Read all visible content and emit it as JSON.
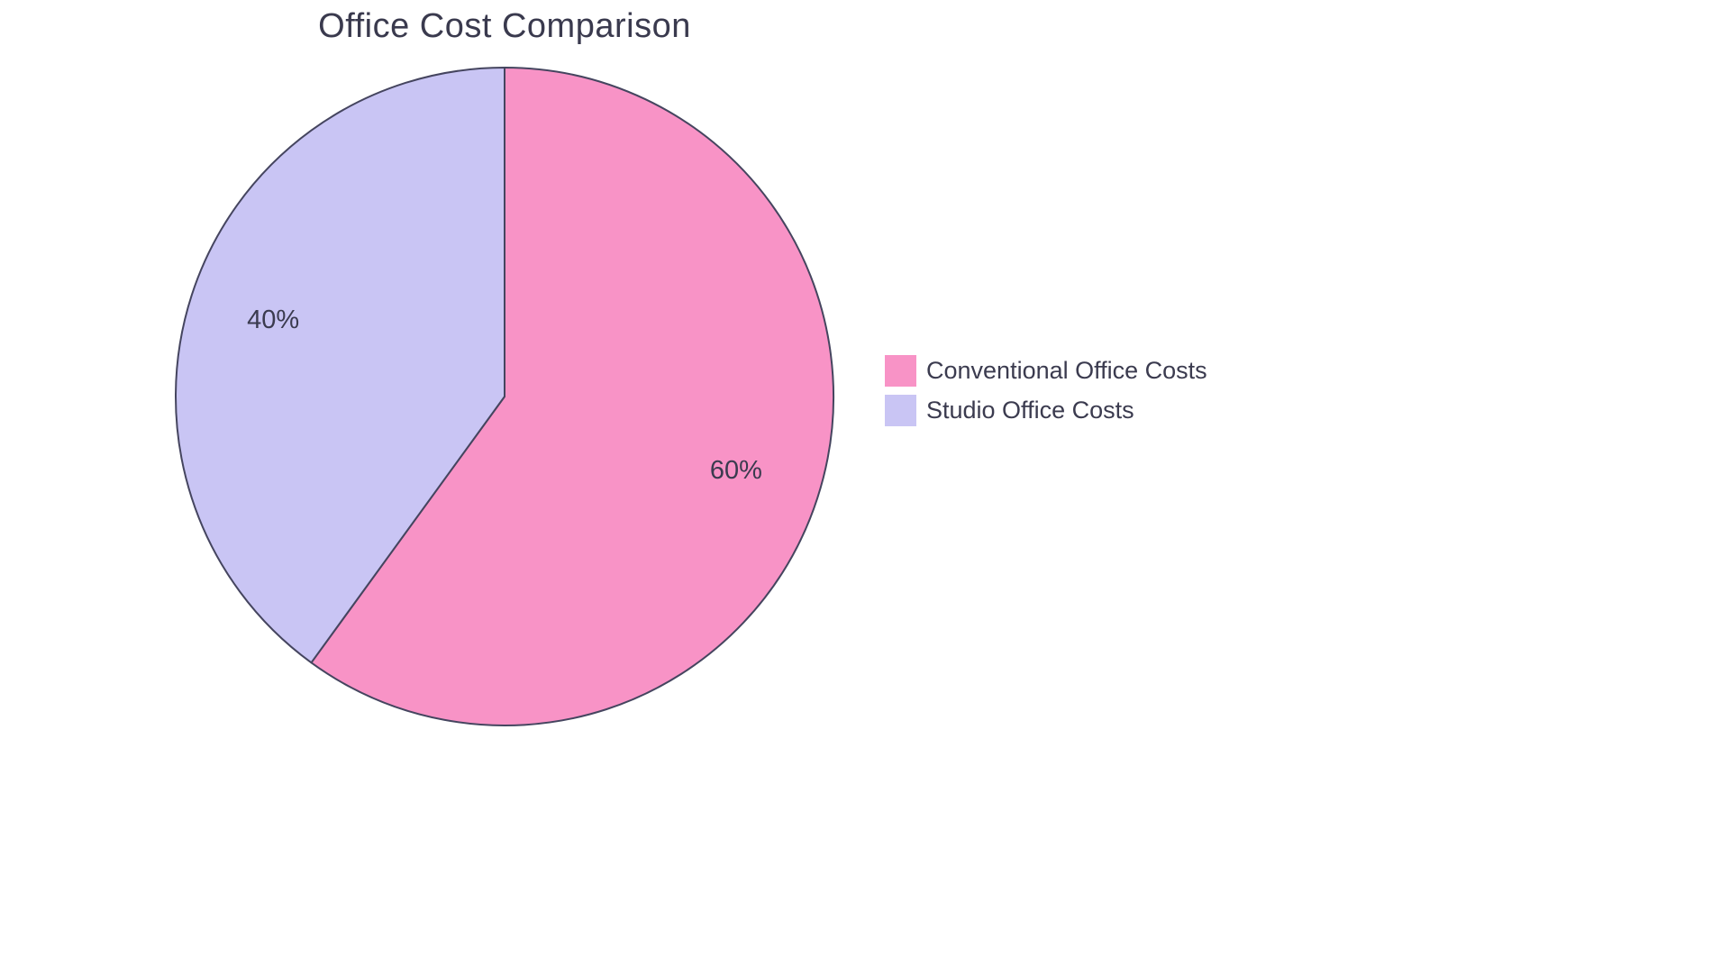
{
  "page": {
    "background": "#FFFFFF"
  },
  "chart_data": {
    "type": "pie",
    "title": "Office Cost Comparison",
    "series": [
      {
        "label": "Conventional Office Costs",
        "value": 60,
        "display_label": "60%",
        "color": "#F893C6"
      },
      {
        "label": "Studio Office Costs",
        "value": 40,
        "display_label": "40%",
        "color": "#C9C5F4"
      }
    ],
    "start_angle_deg": 0,
    "direction": "clockwise",
    "legend_position": "right",
    "stroke_color": "#45455F",
    "text_color": "#3B3B4F",
    "slice_label_font_size": 29
  }
}
